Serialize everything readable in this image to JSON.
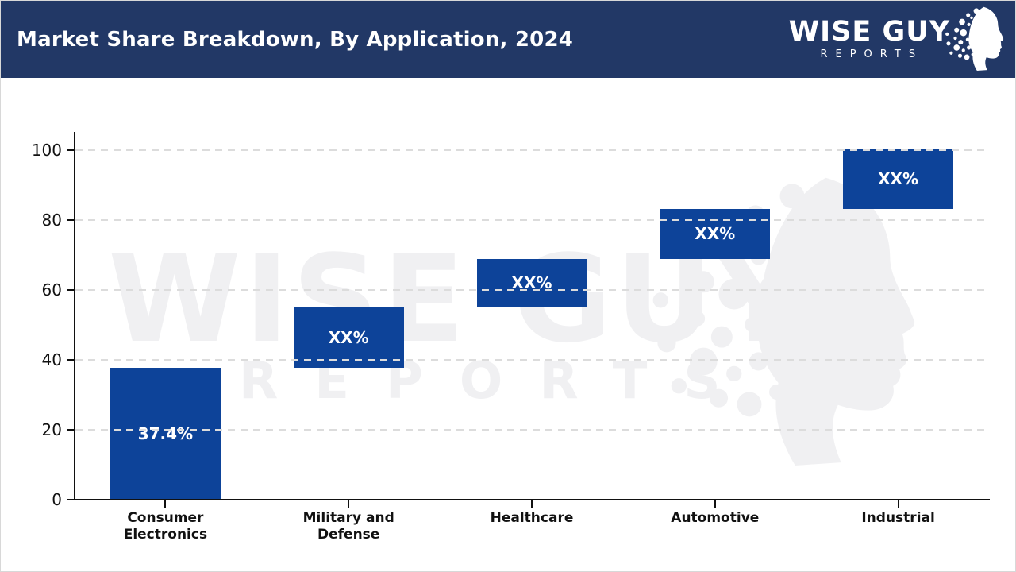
{
  "header": {
    "title": "Market Share Breakdown, By Application, 2024",
    "logo": {
      "line1": "WISE GUY",
      "line2": "REPORTS"
    }
  },
  "watermark": {
    "line1": "WISE GUY",
    "line2": "REPORTS"
  },
  "colors": {
    "header_bg": "#223866",
    "bar_blue": "#0d4399",
    "axis": "#111111",
    "gridline": "#dcdcdc",
    "bar_label_text": "#ffffff",
    "watermark": "#f0f0f2",
    "frame_border": "#d8d8d8"
  },
  "chart_data": {
    "type": "bar",
    "subtype": "waterfall",
    "title": "Market Share Breakdown, By Application, 2024",
    "xlabel": "",
    "ylabel": "",
    "categories": [
      "Consumer Electronics",
      "Military and Defense",
      "Healthcare",
      "Automotive",
      "Industrial"
    ],
    "segments": [
      {
        "category": "Consumer Electronics",
        "start": 0,
        "end": 37.4,
        "label": "37.4%"
      },
      {
        "category": "Military and Defense",
        "start": 37.4,
        "end": 55.0,
        "label": "XX%"
      },
      {
        "category": "Healthcare",
        "start": 55.0,
        "end": 68.6,
        "label": "XX%"
      },
      {
        "category": "Automotive",
        "start": 68.6,
        "end": 83.0,
        "label": "XX%"
      },
      {
        "category": "Industrial",
        "start": 83.0,
        "end": 100.0,
        "label": "XX%"
      }
    ],
    "bar_labels": [
      "37.4%",
      "XX%",
      "XX%",
      "XX%",
      "XX%"
    ],
    "yticks": [
      0,
      20,
      40,
      60,
      80,
      100
    ],
    "ylim": [
      0,
      104
    ],
    "grid": "horizontal-dashed",
    "legend": "none"
  }
}
